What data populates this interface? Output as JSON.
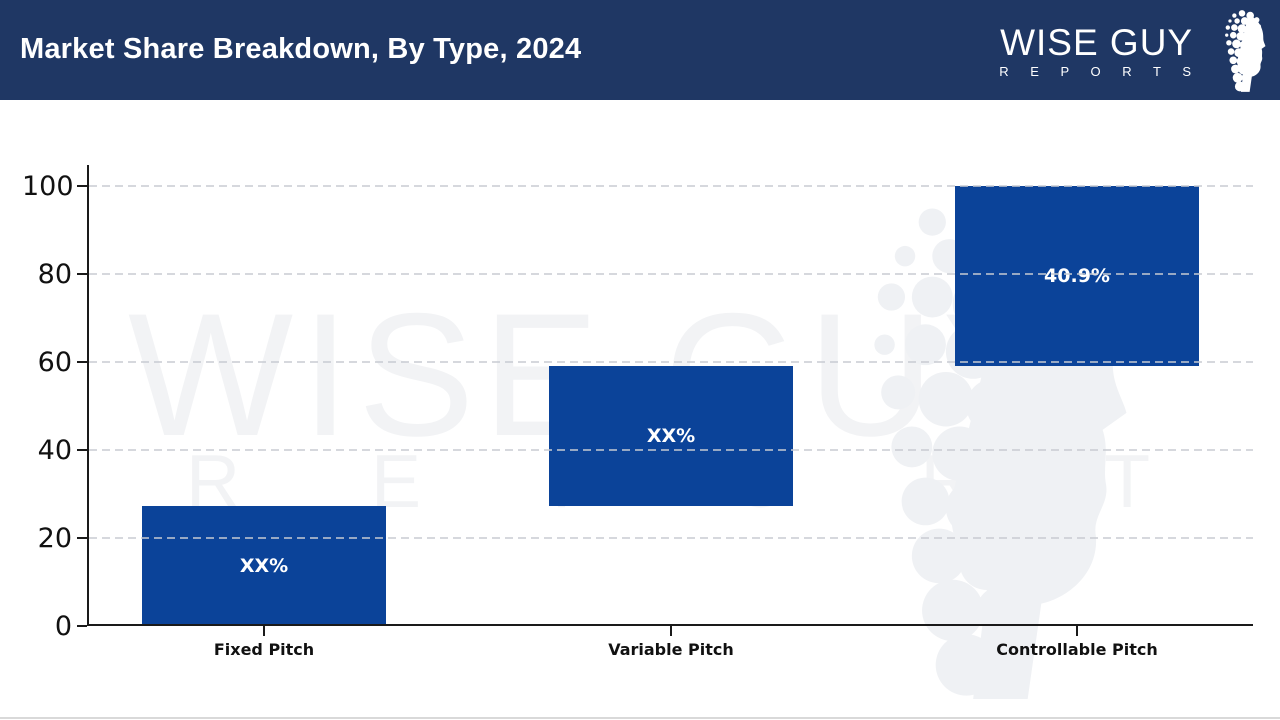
{
  "header": {
    "title": "Market Share Breakdown, By Type, 2024",
    "logo": {
      "line1": "WISE GUY",
      "line2": "REPORTS"
    }
  },
  "watermark": {
    "line1": "WISE GUY",
    "line2": "REPORTS"
  },
  "colors": {
    "header_bg": "#1f3764",
    "bar": "#0b4399",
    "grid": "#d9d9d9",
    "axis": "#1a1a1a",
    "bar_label": "#ffffff",
    "watermark": "#f2f3f5"
  },
  "chart_data": {
    "type": "bar",
    "subtype": "floating-waterfall",
    "title": "Market Share Breakdown, By Type, 2024",
    "categories": [
      "Fixed Pitch",
      "Variable Pitch",
      "Controllable Pitch"
    ],
    "segments": [
      {
        "category": "Fixed Pitch",
        "start": 0,
        "end": 27.2,
        "value": 27.2,
        "label": "XX%"
      },
      {
        "category": "Variable Pitch",
        "start": 27.2,
        "end": 59.1,
        "value": 31.9,
        "label": "XX%"
      },
      {
        "category": "Controllable Pitch",
        "start": 59.1,
        "end": 100,
        "value": 40.9,
        "label": "40.9%"
      }
    ],
    "xlabel": "",
    "ylabel": "",
    "ylim": [
      0,
      100
    ],
    "yticks": [
      0,
      20,
      40,
      60,
      80,
      100
    ],
    "grid": "horizontal-dashed",
    "legend": "none"
  }
}
